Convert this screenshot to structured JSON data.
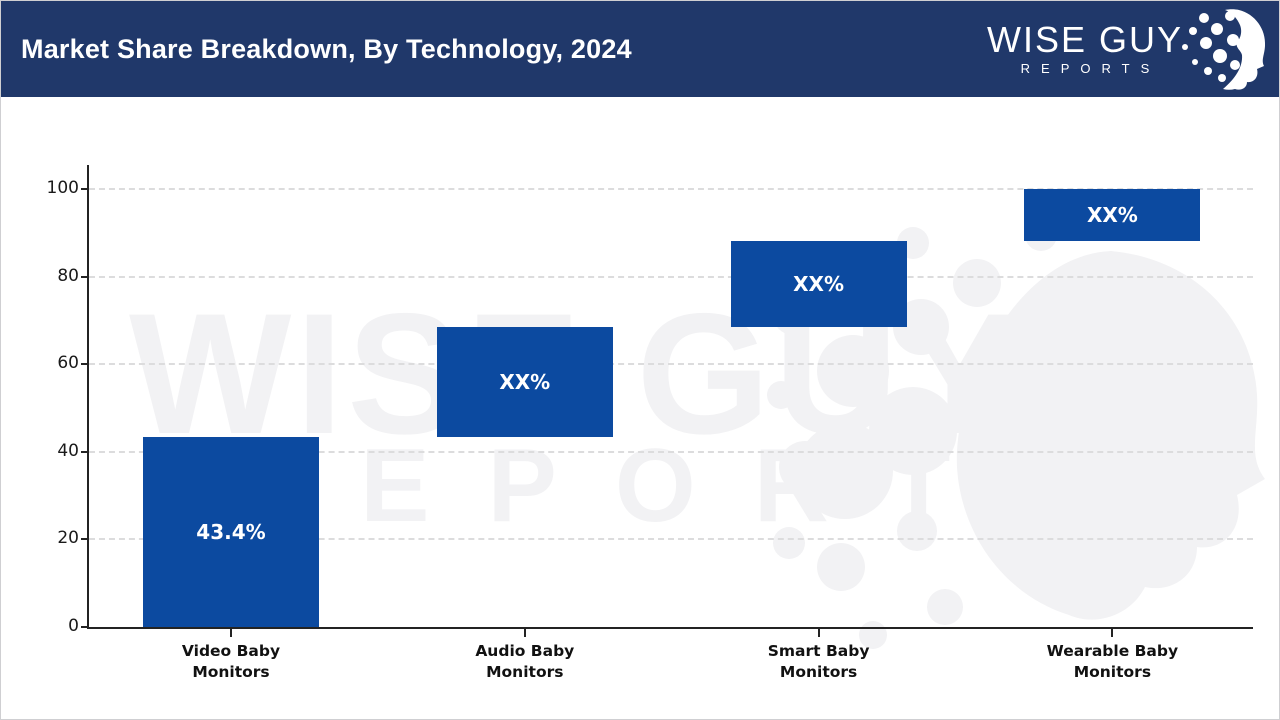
{
  "header": {
    "title": "Market Share Breakdown, By Technology, 2024",
    "bg_color": "#20386a",
    "logo": {
      "wordmark": "WISE GUY",
      "subtext": "REPORTS"
    }
  },
  "watermark": {
    "line1": "WISE GUY",
    "line2": "REPORTS"
  },
  "chart_data": {
    "type": "bar",
    "subtype": "waterfall",
    "title": "Market Share Breakdown, By Technology, 2024",
    "categories": [
      "Video Baby Monitors",
      "Audio Baby Monitors",
      "Smart Baby Monitors",
      "Wearable Baby Monitors"
    ],
    "segments": [
      {
        "category": "Video Baby Monitors",
        "start": 0,
        "end": 43.4,
        "label": "43.4%"
      },
      {
        "category": "Audio Baby Monitors",
        "start": 43.4,
        "end": 68.6,
        "label": "XX%"
      },
      {
        "category": "Smart Baby Monitors",
        "start": 68.6,
        "end": 88.2,
        "label": "XX%"
      },
      {
        "category": "Wearable Baby Monitors",
        "start": 88.2,
        "end": 100,
        "label": "XX%"
      }
    ],
    "xlabel": "",
    "ylabel": "",
    "ylim": [
      0,
      100
    ],
    "yticks": [
      0,
      20,
      40,
      60,
      80,
      100
    ],
    "grid": "horizontal-dashed",
    "legend": "none",
    "colors": {
      "bar": "#0c4aa0",
      "bar_label": "#ffffff",
      "axis": "#232323",
      "gridline": "#dcdcdd",
      "header_bg": "#20386a",
      "watermark": "#f2f2f4"
    }
  }
}
